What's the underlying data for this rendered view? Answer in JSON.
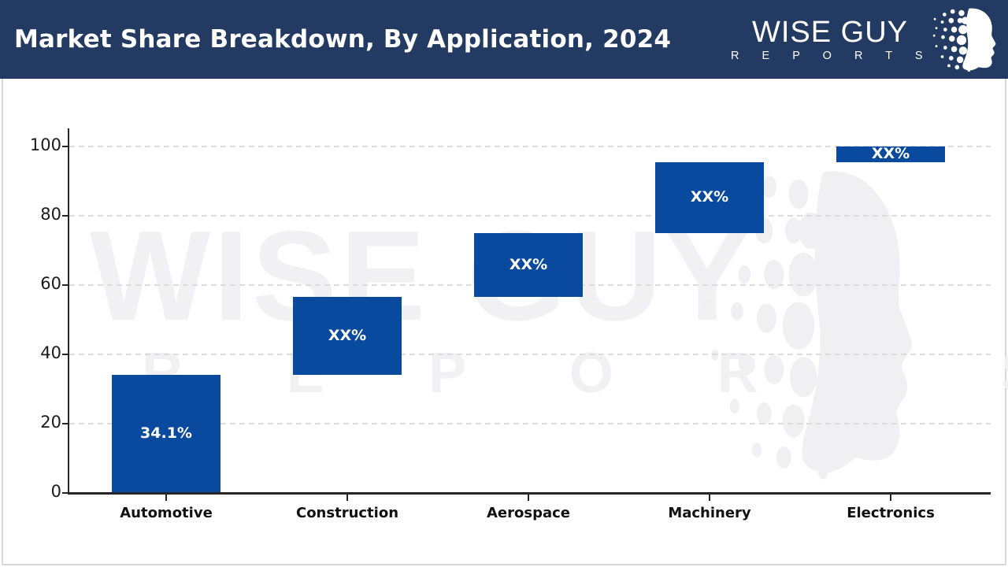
{
  "header": {
    "title": "Market Share Breakdown, By Application, 2024",
    "logo_primary": "WISE GUY",
    "logo_secondary": "R E P O R T S",
    "background": "#233a63",
    "text_color": "#ffffff"
  },
  "watermark": {
    "primary": "WISE GUY",
    "secondary": "R E P O R T S"
  },
  "chart_data": {
    "type": "bar",
    "subtype": "waterfall",
    "title": "Market Share Breakdown, By Application, 2024",
    "categories": [
      "Automotive",
      "Construction",
      "Aerospace",
      "Machinery",
      "Electronics"
    ],
    "segments": [
      {
        "category": "Automotive",
        "start": 0,
        "end": 34.1,
        "label": "34.1%"
      },
      {
        "category": "Construction",
        "start": 34.1,
        "end": 56.6,
        "label": "XX%"
      },
      {
        "category": "Aerospace",
        "start": 56.6,
        "end": 75.0,
        "label": "XX%"
      },
      {
        "category": "Machinery",
        "start": 75.0,
        "end": 95.3,
        "label": "XX%"
      },
      {
        "category": "Electronics",
        "start": 95.3,
        "end": 100.0,
        "label": "XX%"
      }
    ],
    "ylim": [
      0,
      100
    ],
    "yticks": [
      0,
      20,
      40,
      60,
      80,
      100
    ],
    "grid": "horizontal-dashed",
    "legend": "none",
    "bar_color": "#0a4a9e",
    "bar_label_color": "#ffffff",
    "axis_color": "#262626",
    "gridline_color": "#dcdcdc"
  }
}
